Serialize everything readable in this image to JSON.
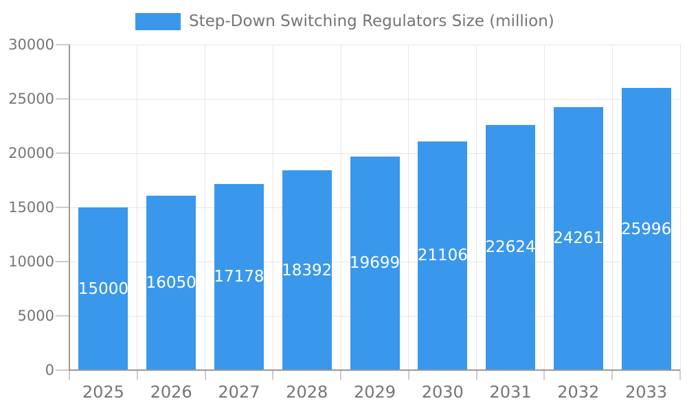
{
  "legend": {
    "series_label": "Step-Down Switching Regulators Size (million)"
  },
  "chart_data": {
    "type": "bar",
    "title": "Step-Down Switching Regulators Size (million)",
    "categories": [
      "2025",
      "2026",
      "2027",
      "2028",
      "2029",
      "2030",
      "2031",
      "2032",
      "2033"
    ],
    "values": [
      15000,
      16050,
      17178,
      18392,
      19699,
      21106,
      22624,
      24261,
      25996
    ],
    "series": [
      {
        "name": "Step-Down Switching Regulators Size (million)",
        "values": [
          15000,
          16050,
          17178,
          18392,
          19699,
          21106,
          22624,
          24261,
          25996
        ]
      }
    ],
    "xlabel": "",
    "ylabel": "",
    "ylim": [
      0,
      30000
    ],
    "yticks": [
      0,
      5000,
      10000,
      15000,
      20000,
      25000,
      30000
    ],
    "grid": true,
    "legend_position": "top-center",
    "value_labels": "inside-center",
    "colors": {
      "bar": "#3a98ec",
      "bar_label": "#ffffff",
      "axis_text": "#757575",
      "axis_line": "#999999",
      "tick_line": "#cccccc",
      "grid_line": "#e6e6e6",
      "background": "#ffffff"
    }
  }
}
